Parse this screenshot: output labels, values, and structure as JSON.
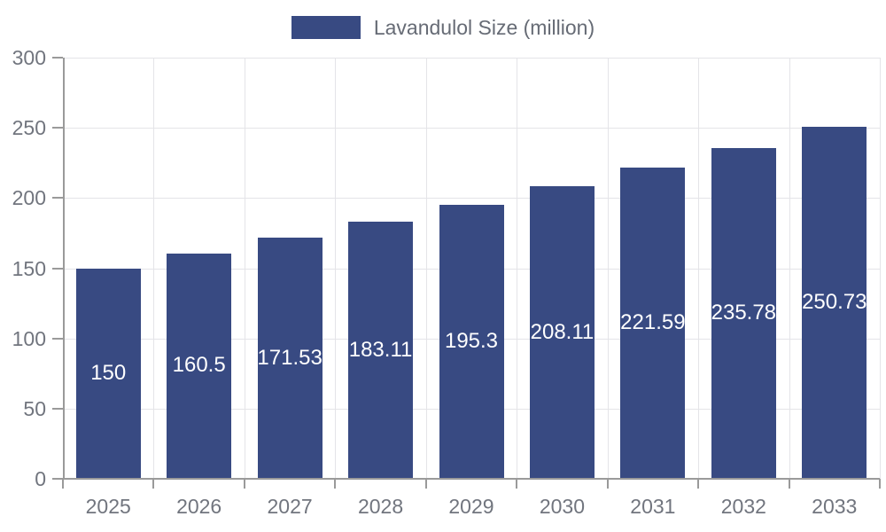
{
  "legend": {
    "label": "Lavandulol Size (million)"
  },
  "chart_data": {
    "type": "bar",
    "title": "",
    "xlabel": "",
    "ylabel": "",
    "categories": [
      "2025",
      "2026",
      "2027",
      "2028",
      "2029",
      "2030",
      "2031",
      "2032",
      "2033"
    ],
    "series": [
      {
        "name": "Lavandulol Size (million)",
        "values": [
          150,
          160.5,
          171.53,
          183.11,
          195.3,
          208.11,
          221.59,
          235.78,
          250.73
        ]
      }
    ],
    "value_labels": [
      "150",
      "160.5",
      "171.53",
      "183.11",
      "195.3",
      "208.11",
      "221.59",
      "235.78",
      "250.73"
    ],
    "ylim": [
      0,
      300
    ],
    "ytick_step": 50,
    "ytick_labels": [
      "0",
      "50",
      "100",
      "150",
      "200",
      "250",
      "300"
    ],
    "grid": "on",
    "legend_position": "top-center",
    "bar_value_labels": "inside-middle"
  },
  "colors": {
    "bar": "#384a82",
    "bar_label": "#ffffff",
    "axis_label": "#71757e",
    "legend_text": "#666b75",
    "axis_line": "#9a9a9a",
    "gridline": "#e4e4e8",
    "background": "#ffffff"
  }
}
